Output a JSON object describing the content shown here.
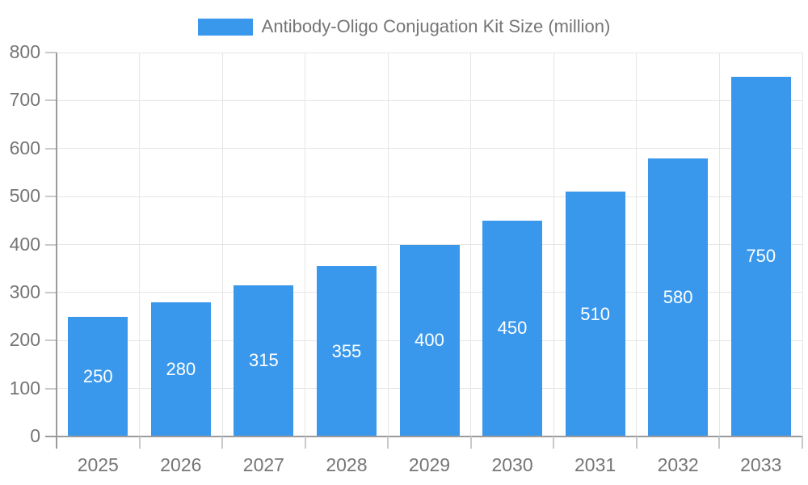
{
  "legend": {
    "label": "Antibody-Oligo Conjugation Kit Size (million)"
  },
  "colors": {
    "bar": "#3a98ec",
    "grid": "#e6e6e6",
    "axis": "#9b9b9b",
    "tick": "#c9c9c9",
    "axis_label": "#757575",
    "bar_label": "#ffffff",
    "background": "#ffffff"
  },
  "chart_data": {
    "type": "bar",
    "title": "Antibody-Oligo Conjugation Kit Size (million)",
    "categories": [
      "2025",
      "2026",
      "2027",
      "2028",
      "2029",
      "2030",
      "2031",
      "2032",
      "2033"
    ],
    "values": [
      250,
      280,
      315,
      355,
      400,
      450,
      510,
      580,
      750
    ],
    "xlabel": "",
    "ylabel": "",
    "ylim": [
      0,
      800
    ],
    "ytick_step": 100,
    "ytick_labels": [
      "0",
      "100",
      "200",
      "300",
      "400",
      "500",
      "600",
      "700",
      "800"
    ],
    "grid": true,
    "legend_position": "top",
    "bar_labels_inside": true,
    "bar_label_color": "#ffffff"
  }
}
